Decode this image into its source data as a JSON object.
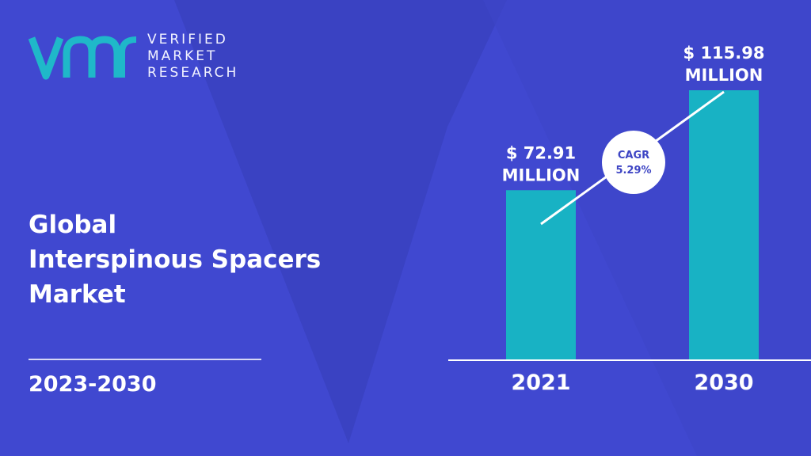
{
  "brand": {
    "logo_mark": "vmr-logo-icon",
    "line1": "VERIFIED",
    "line2": "MARKET",
    "line3": "RESEARCH"
  },
  "title": {
    "line1": "Global",
    "line2": "Interspinous Spacers",
    "line3": "Market"
  },
  "period": "2023-2030",
  "colors": {
    "background": "#4048d0",
    "background_shape": "#3a42c2",
    "bar": "#18b2c4",
    "logo_accent": "#1fb8c9"
  },
  "chart_data": {
    "type": "bar",
    "categories": [
      "2021",
      "2030"
    ],
    "values": [
      72.91,
      115.98
    ],
    "value_labels": [
      [
        "$ 72.91",
        "MILLION"
      ],
      [
        "$ 115.98",
        "MILLION"
      ]
    ],
    "cagr_label": "CAGR",
    "cagr_value": "5.29%",
    "ylim": [
      0,
      130
    ]
  }
}
